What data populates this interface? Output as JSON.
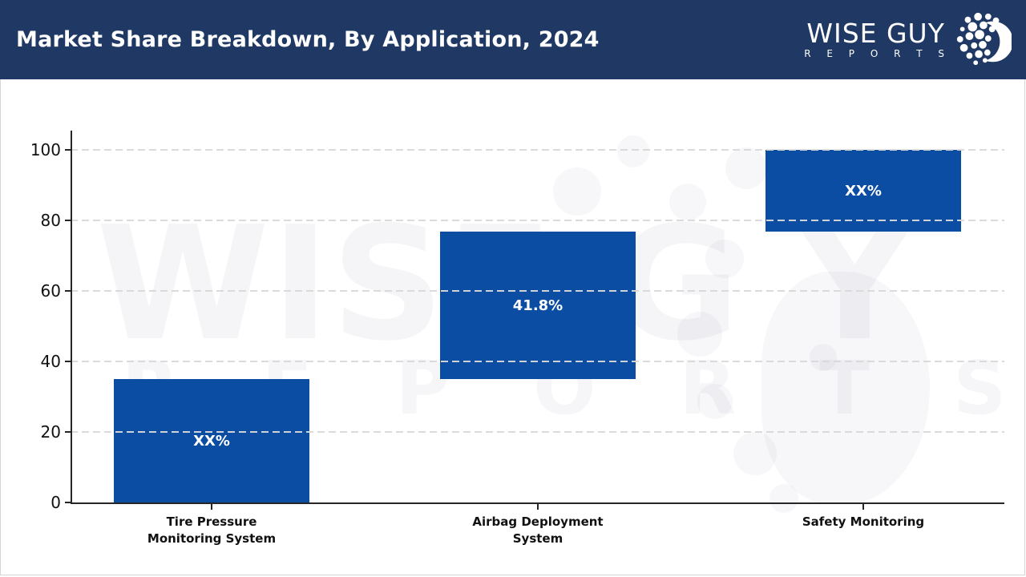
{
  "header": {
    "title": "Market Share Breakdown, By Application, 2024",
    "logo": {
      "line1": "WISE GUY",
      "line2": "R E P O R T S"
    }
  },
  "watermark": {
    "line1": "WISE G Y",
    "line2": "R E P O R T S"
  },
  "colors": {
    "header_bg": "#1F3864",
    "bar": "#0B4DA2",
    "bar_label": "#FFFFFF",
    "grid": "#D9D9D9",
    "axis": "#262626",
    "tick_label": "#111111"
  },
  "chart_data": {
    "type": "bar",
    "subtype": "waterfall",
    "title": "Market Share Breakdown, By Application, 2024",
    "categories": [
      "Tire Pressure\nMonitoring System",
      "Airbag Deployment\nSystem",
      "Safety Monitoring"
    ],
    "segments": [
      {
        "category": "Tire Pressure Monitoring System",
        "start": 0,
        "end": 35,
        "value_label": "XX%"
      },
      {
        "category": "Airbag Deployment System",
        "start": 35,
        "end": 76.8,
        "value_label": "41.8%"
      },
      {
        "category": "Safety Monitoring",
        "start": 76.8,
        "end": 100,
        "value_label": "XX%"
      }
    ],
    "xlabel": "",
    "ylabel": "",
    "ylim": [
      0,
      100
    ],
    "yticks": [
      0,
      20,
      40,
      60,
      80,
      100
    ],
    "grid": "horizontal-dashed",
    "legend": "none"
  }
}
